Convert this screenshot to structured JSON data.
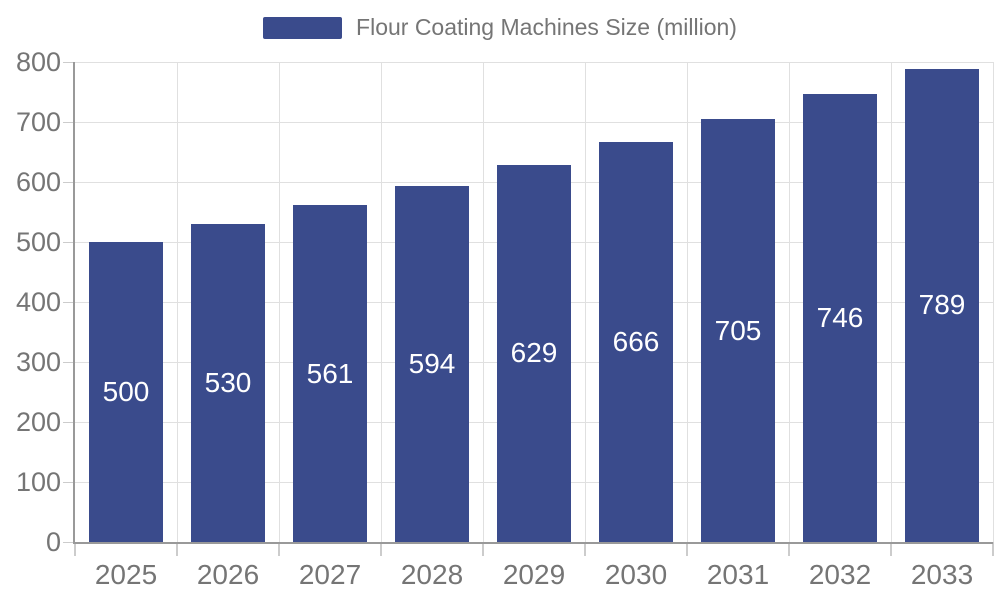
{
  "legend": {
    "label": "Flour Coating Machines Size (million)"
  },
  "chart_data": {
    "type": "bar",
    "title": "",
    "xlabel": "",
    "ylabel": "",
    "categories": [
      "2025",
      "2026",
      "2027",
      "2028",
      "2029",
      "2030",
      "2031",
      "2032",
      "2033"
    ],
    "series": [
      {
        "name": "Flour Coating Machines Size (million)",
        "values": [
          500,
          530,
          561,
          594,
          629,
          666,
          705,
          746,
          789
        ]
      }
    ],
    "value_labels": [
      "500",
      "530",
      "561",
      "594",
      "629",
      "666",
      "705",
      "746",
      "789"
    ],
    "ylim": [
      0,
      800
    ],
    "ytick_interval": 100,
    "yticks": [
      0,
      100,
      200,
      300,
      400,
      500,
      600,
      700,
      800
    ],
    "grid": true,
    "legend_position": "top",
    "colors": {
      "bar": "#3a4b8c",
      "grid": "#e0e0e0",
      "axis": "#999999",
      "tick": "#cccccc",
      "tick_label": "#757575",
      "legend_text": "#757575",
      "value_label": "#ffffff",
      "background": "#ffffff"
    }
  }
}
